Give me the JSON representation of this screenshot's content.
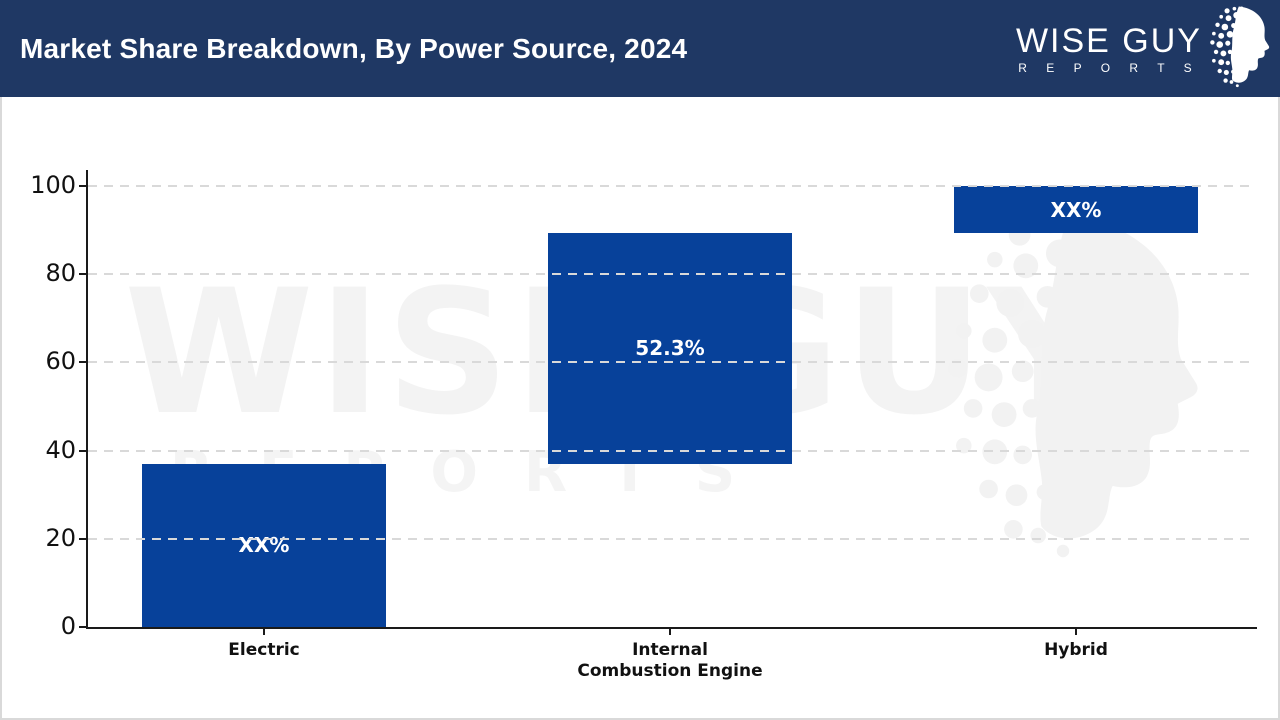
{
  "header": {
    "title": "Market Share Breakdown, By Power Source, 2024",
    "background_color": "#1f3864",
    "logo": {
      "wordmark": "WISE GUY",
      "subtitle": "R E P O R T S"
    }
  },
  "watermark": {
    "wordmark": "WISE GUY",
    "subtitle": "REPORTS"
  },
  "chart_data": {
    "type": "bar",
    "subtype": "stacked-breakdown-waterfall",
    "title": "Market Share Breakdown, By Power Source, 2024",
    "categories": [
      "Electric",
      "Internal\nCombustion Engine",
      "Hybrid"
    ],
    "segments": [
      {
        "category": "Electric",
        "from": 0,
        "to": 37,
        "label": "XX%"
      },
      {
        "category": "Internal Combustion Engine",
        "from": 37,
        "to": 89.3,
        "label": "52.3%"
      },
      {
        "category": "Hybrid",
        "from": 89.3,
        "to": 100,
        "label": "XX%"
      }
    ],
    "ylim": [
      0,
      100
    ],
    "yticks": [
      0,
      20,
      40,
      60,
      80,
      100
    ],
    "grid": "horizontal-dashed",
    "legend": "none",
    "bar_color": "#07419a",
    "bar_label_color": "#ffffff",
    "axis_color": "#1a1a1a",
    "gridline_color": "#d9d9d9",
    "watermark_color": "#f3f3f3"
  }
}
